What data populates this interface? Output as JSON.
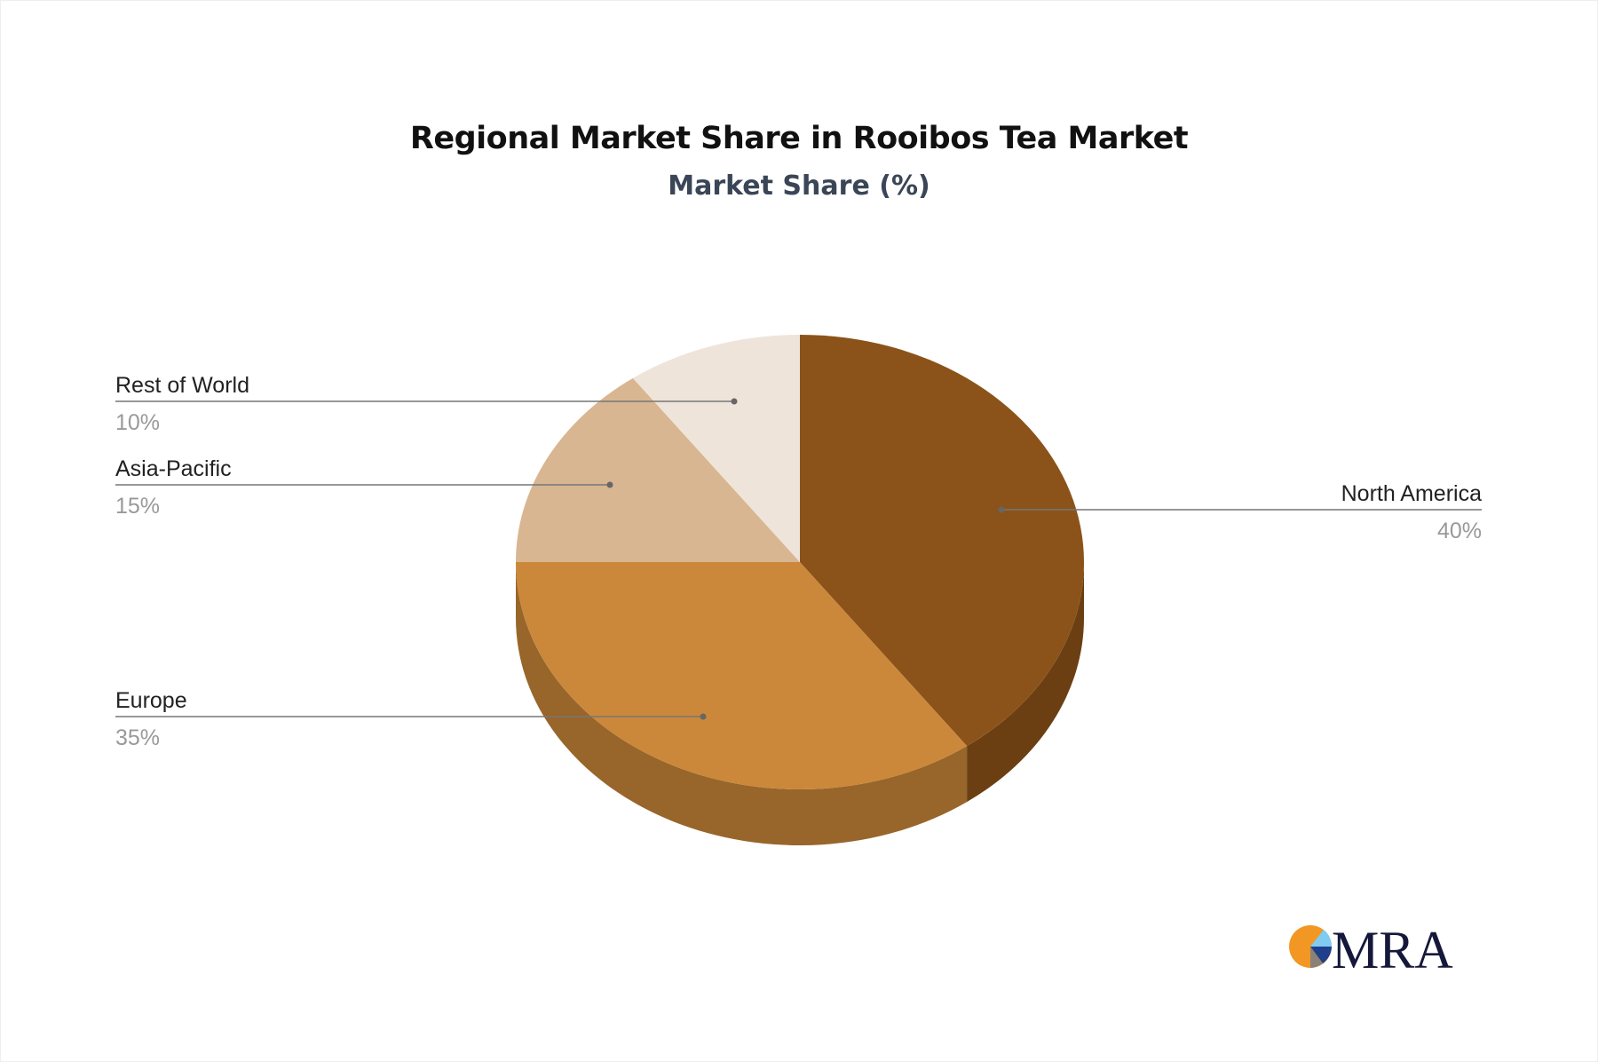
{
  "chart_data": {
    "type": "pie",
    "title": "Regional Market Share in Rooibos Tea Market",
    "subtitle": "Market Share (%)",
    "style": "3d",
    "slices": [
      {
        "label": "North America",
        "value": 40,
        "value_label": "40%",
        "color": "#8B5319",
        "side_color": "#6B3F12"
      },
      {
        "label": "Europe",
        "value": 35,
        "value_label": "35%",
        "color": "#CB883B",
        "side_color": "#98652A"
      },
      {
        "label": "Asia-Pacific",
        "value": 15,
        "value_label": "15%",
        "color": "#D8B692",
        "side_color": "#B0916F"
      },
      {
        "label": "Rest of World",
        "value": 10,
        "value_label": "10%",
        "color": "#EEE4DA",
        "side_color": "#C9BDB0"
      }
    ]
  },
  "logo": {
    "text": "MRA"
  }
}
